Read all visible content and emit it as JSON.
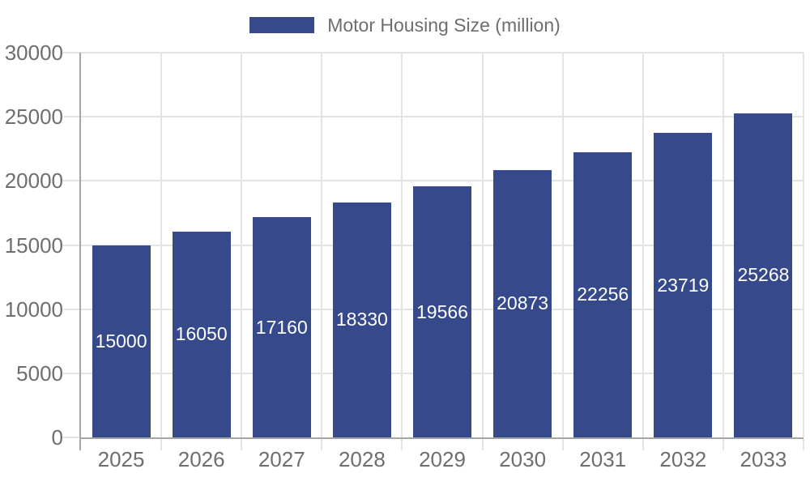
{
  "chart_data": {
    "type": "bar",
    "title": "Motor Housing Size (million)",
    "legend": [
      "Motor Housing Size (million)"
    ],
    "legend_position": "top-center",
    "categories": [
      "2025",
      "2026",
      "2027",
      "2028",
      "2029",
      "2030",
      "2031",
      "2032",
      "2033"
    ],
    "series": [
      {
        "name": "Motor Housing Size (million)",
        "values": [
          15000,
          16050,
          17160,
          18330,
          19566,
          20873,
          22256,
          23719,
          25268
        ]
      }
    ],
    "xlabel": "",
    "ylabel": "",
    "ylim": [
      0,
      30000
    ],
    "yticks": [
      0,
      5000,
      10000,
      15000,
      20000,
      25000,
      30000
    ],
    "grid": true,
    "value_labels": "inside-center"
  },
  "colors": {
    "background": "#ffffff",
    "bar": "#36498b",
    "axis": "#a6a6a6",
    "grid": "#e3e3e3",
    "tick_label_text": "#6e6e6e",
    "legend_text": "#6e6e6e",
    "value_label_text": "#ffffff"
  }
}
